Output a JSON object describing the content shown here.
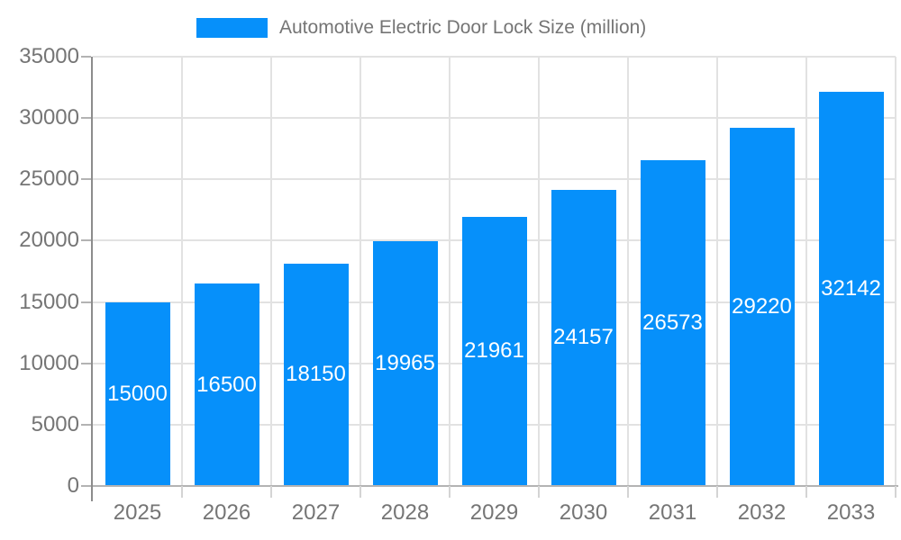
{
  "colors": {
    "bar": "#0690FA",
    "bar_label": "#ffffff",
    "axis_text": "#757575",
    "grid": "#e2e2e2",
    "axis_line": "#8c8c8c",
    "baseline": "#b3b3b3",
    "xtick": "#d4d4d4",
    "background": "#ffffff"
  },
  "chart_data": {
    "type": "bar",
    "title": "Automotive Electric Door Lock Size (million)",
    "xlabel": "",
    "ylabel": "",
    "categories": [
      "2025",
      "2026",
      "2027",
      "2028",
      "2029",
      "2030",
      "2031",
      "2032",
      "2033"
    ],
    "series": [
      {
        "name": "Automotive Electric Door Lock Size (million)",
        "color": "#0690FA",
        "values": [
          15000,
          16500,
          18150,
          19965,
          21961,
          24157,
          26573,
          29220,
          32142
        ],
        "data_labels": [
          "15000",
          "16500",
          "18150",
          "19965",
          "21961",
          "24157",
          "26573",
          "29220",
          "32142"
        ]
      }
    ],
    "ylim": [
      0,
      35000
    ],
    "yticks": [
      0,
      5000,
      10000,
      15000,
      20000,
      25000,
      30000,
      35000
    ],
    "ytick_labels": [
      "0",
      "5000",
      "10000",
      "15000",
      "20000",
      "25000",
      "30000",
      "35000"
    ],
    "grid": true,
    "legend_position": "top",
    "data_label_position": "center-inside"
  }
}
